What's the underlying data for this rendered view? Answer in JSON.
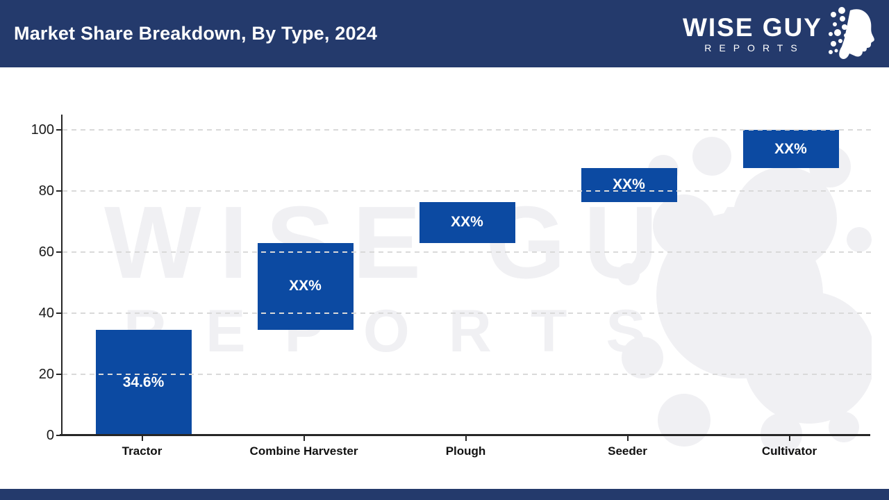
{
  "header": {
    "title": "Market Share Breakdown, By Type, 2024",
    "logo": {
      "line1": "WISE GUY",
      "line2": "REPORTS"
    }
  },
  "watermark": {
    "line1": "WISE GUY",
    "line2": "REPORTS"
  },
  "colors": {
    "header_navy": "#243A6C",
    "footer_navy": "#243A6C",
    "bar_blue": "#0C4AA2",
    "grid_gray": "#D9D9D9",
    "axis_dark": "#262626",
    "watermark_gray": "#F0F0F3",
    "label_white": "#FFFFFF"
  },
  "chart_data": {
    "type": "bar",
    "variant": "waterfall-floating-bars",
    "title": "Market Share Breakdown, By Type, 2024",
    "categories": [
      "Tractor",
      "Combine Harvester",
      "Plough",
      "Seeder",
      "Cultivator"
    ],
    "segments": [
      {
        "category": "Tractor",
        "start": 0,
        "end": 34.6,
        "label": "34.6%"
      },
      {
        "category": "Combine Harvester",
        "start": 34.6,
        "end": 63.0,
        "label": "XX%"
      },
      {
        "category": "Plough",
        "start": 63.0,
        "end": 76.4,
        "label": "XX%"
      },
      {
        "category": "Seeder",
        "start": 76.4,
        "end": 87.5,
        "label": "XX%"
      },
      {
        "category": "Cultivator",
        "start": 87.5,
        "end": 100,
        "label": "XX%"
      }
    ],
    "yticks": [
      0,
      20,
      40,
      60,
      80,
      100
    ],
    "ylim": [
      0,
      105
    ],
    "xlabel": "",
    "ylabel": "",
    "grid": "horizontal-dashed-above-bars",
    "legend": "none",
    "bar_color": "#0C4AA2"
  }
}
